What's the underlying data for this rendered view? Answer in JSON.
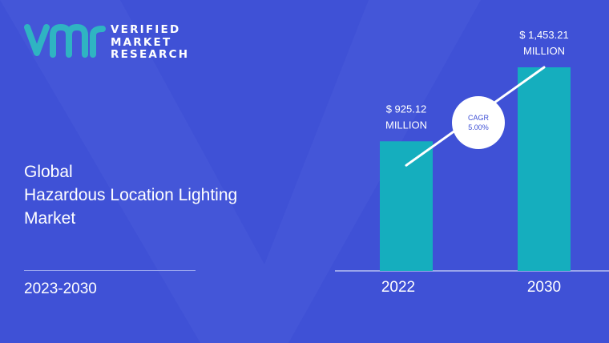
{
  "brand": {
    "line1": "VERIFIED",
    "line2": "MARKET",
    "line3": "RESEARCH",
    "colors": {
      "logo_teal": "#2fb4c2",
      "background": "#3f51d6",
      "bar": "#15aebe"
    }
  },
  "report": {
    "title_line1": "Global",
    "title_line2": "Hazardous Location Lighting",
    "title_line3": "Market",
    "period": "2023-2030"
  },
  "chart_data": {
    "type": "bar",
    "categories": [
      "2022",
      "2030"
    ],
    "values": [
      925.12,
      1453.21
    ],
    "units": "MILLION",
    "data_labels": [
      {
        "line1": "$ 925.12",
        "line2": "MILLION"
      },
      {
        "line1": "$ 1,453.21",
        "line2": "MILLION"
      }
    ],
    "annotation": {
      "line1": "CAGR",
      "line2": "5.00%"
    },
    "grid": false,
    "legend": "none"
  }
}
